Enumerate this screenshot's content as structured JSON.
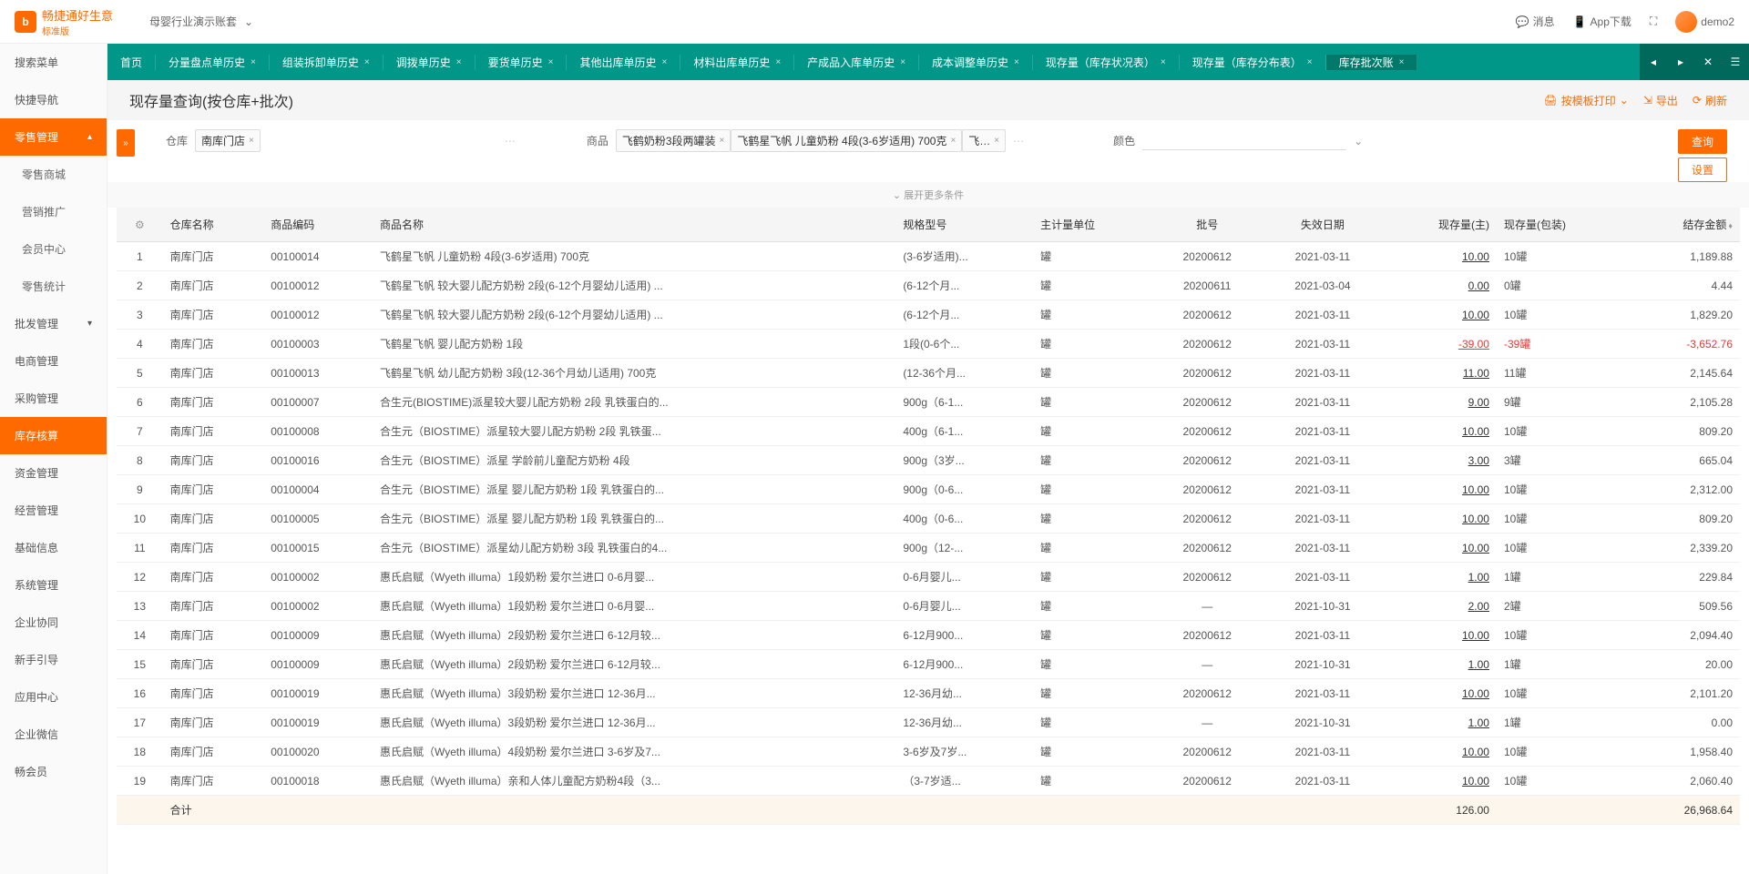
{
  "topbar": {
    "brand_main": "畅捷通好生意",
    "brand_sub": "标准版",
    "account": "母婴行业演示账套",
    "msg": "消息",
    "app": "App下载",
    "user": "demo2"
  },
  "sidebar": {
    "items": [
      {
        "label": "搜索菜单",
        "type": "item"
      },
      {
        "label": "快捷导航",
        "type": "item"
      },
      {
        "label": "零售管理",
        "type": "item",
        "active": true,
        "arrow": "▴"
      },
      {
        "label": "零售商城",
        "type": "sub"
      },
      {
        "label": "营销推广",
        "type": "sub"
      },
      {
        "label": "会员中心",
        "type": "sub"
      },
      {
        "label": "零售统计",
        "type": "sub"
      },
      {
        "label": "批发管理",
        "type": "item",
        "arrow": "▾"
      },
      {
        "label": "电商管理",
        "type": "item"
      },
      {
        "label": "采购管理",
        "type": "item"
      },
      {
        "label": "库存核算",
        "type": "item",
        "highlight": true
      },
      {
        "label": "资金管理",
        "type": "item"
      },
      {
        "label": "经营管理",
        "type": "item"
      },
      {
        "label": "基础信息",
        "type": "item"
      },
      {
        "label": "系统管理",
        "type": "item"
      },
      {
        "label": "企业协同",
        "type": "item"
      },
      {
        "label": "新手引导",
        "type": "item"
      },
      {
        "label": "应用中心",
        "type": "item"
      },
      {
        "label": "企业微信",
        "type": "item"
      },
      {
        "label": "畅会员",
        "type": "item"
      }
    ]
  },
  "tabs": [
    {
      "label": "首页",
      "closable": false
    },
    {
      "label": "分量盘点单历史",
      "closable": true
    },
    {
      "label": "组装拆卸单历史",
      "closable": true
    },
    {
      "label": "调拨单历史",
      "closable": true
    },
    {
      "label": "要货单历史",
      "closable": true
    },
    {
      "label": "其他出库单历史",
      "closable": true
    },
    {
      "label": "材料出库单历史",
      "closable": true
    },
    {
      "label": "产成品入库单历史",
      "closable": true
    },
    {
      "label": "成本调整单历史",
      "closable": true
    },
    {
      "label": "现存量（库存状况表）",
      "closable": true
    },
    {
      "label": "现存量（库存分布表）",
      "closable": true
    },
    {
      "label": "库存批次账",
      "closable": true,
      "active": true
    }
  ],
  "page": {
    "title": "现存量查询(按仓库+批次)",
    "actions": {
      "print": "按模板打印",
      "export": "导出",
      "refresh": "刷新"
    }
  },
  "filters": {
    "warehouse_label": "仓库",
    "warehouse_chip": "南库门店",
    "product_label": "商品",
    "product_chips": [
      "飞鹤奶粉3段两罐装",
      "飞鹤星飞帆 儿童奶粉 4段(3-6岁适用) 700克",
      "飞…"
    ],
    "color_label": "颜色",
    "query_btn": "查询",
    "settings_btn": "设置",
    "expand_more": "展开更多条件"
  },
  "table": {
    "columns": [
      "",
      "仓库名称",
      "商品编码",
      "商品名称",
      "规格型号",
      "主计量单位",
      "批号",
      "失效日期",
      "现存量(主)",
      "现存量(包装)",
      "结存金额"
    ],
    "rows": [
      [
        "1",
        "南库门店",
        "00100014",
        "飞鹤星飞帆 儿童奶粉 4段(3-6岁适用) 700克",
        "(3-6岁适用)...",
        "罐",
        "20200612",
        "2021-03-11",
        "10.00",
        "10罐",
        "1,189.88"
      ],
      [
        "2",
        "南库门店",
        "00100012",
        "飞鹤星飞帆 较大婴儿配方奶粉 2段(6-12个月婴幼儿适用) ...",
        "(6-12个月...",
        "罐",
        "20200611",
        "2021-03-04",
        "0.00",
        "0罐",
        "4.44"
      ],
      [
        "3",
        "南库门店",
        "00100012",
        "飞鹤星飞帆 较大婴儿配方奶粉 2段(6-12个月婴幼儿适用) ...",
        "(6-12个月...",
        "罐",
        "20200612",
        "2021-03-11",
        "10.00",
        "10罐",
        "1,829.20"
      ],
      [
        "4",
        "南库门店",
        "00100003",
        "飞鹤星飞帆 婴儿配方奶粉 1段",
        "1段(0-6个...",
        "罐",
        "20200612",
        "2021-03-11",
        "-39.00",
        "-39罐",
        "-3,652.76"
      ],
      [
        "5",
        "南库门店",
        "00100013",
        "飞鹤星飞帆 幼儿配方奶粉 3段(12-36个月幼儿适用) 700克",
        "(12-36个月...",
        "罐",
        "20200612",
        "2021-03-11",
        "11.00",
        "11罐",
        "2,145.64"
      ],
      [
        "6",
        "南库门店",
        "00100007",
        "合生元(BIOSTIME)派星较大婴儿配方奶粉 2段 乳铁蛋白的...",
        "900g（6-1...",
        "罐",
        "20200612",
        "2021-03-11",
        "9.00",
        "9罐",
        "2,105.28"
      ],
      [
        "7",
        "南库门店",
        "00100008",
        "合生元（BIOSTIME）派星较大婴儿配方奶粉 2段 乳铁蛋...",
        "400g（6-1...",
        "罐",
        "20200612",
        "2021-03-11",
        "10.00",
        "10罐",
        "809.20"
      ],
      [
        "8",
        "南库门店",
        "00100016",
        "合生元（BIOSTIME）派星 学龄前儿童配方奶粉 4段",
        "900g（3岁...",
        "罐",
        "20200612",
        "2021-03-11",
        "3.00",
        "3罐",
        "665.04"
      ],
      [
        "9",
        "南库门店",
        "00100004",
        "合生元（BIOSTIME）派星 婴儿配方奶粉 1段 乳铁蛋白的...",
        "900g（0-6...",
        "罐",
        "20200612",
        "2021-03-11",
        "10.00",
        "10罐",
        "2,312.00"
      ],
      [
        "10",
        "南库门店",
        "00100005",
        "合生元（BIOSTIME）派星 婴儿配方奶粉 1段 乳铁蛋白的...",
        "400g（0-6...",
        "罐",
        "20200612",
        "2021-03-11",
        "10.00",
        "10罐",
        "809.20"
      ],
      [
        "11",
        "南库门店",
        "00100015",
        "合生元（BIOSTIME）派星幼儿配方奶粉 3段 乳铁蛋白的4...",
        "900g（12-...",
        "罐",
        "20200612",
        "2021-03-11",
        "10.00",
        "10罐",
        "2,339.20"
      ],
      [
        "12",
        "南库门店",
        "00100002",
        "惠氏启赋（Wyeth illuma）1段奶粉 爱尔兰进口 0-6月婴...",
        "0-6月婴儿...",
        "罐",
        "20200612",
        "2021-03-11",
        "1.00",
        "1罐",
        "229.84"
      ],
      [
        "13",
        "南库门店",
        "00100002",
        "惠氏启赋（Wyeth illuma）1段奶粉 爱尔兰进口 0-6月婴...",
        "0-6月婴儿...",
        "罐",
        "—",
        "2021-10-31",
        "2.00",
        "2罐",
        "509.56"
      ],
      [
        "14",
        "南库门店",
        "00100009",
        "惠氏启赋（Wyeth illuma）2段奶粉 爱尔兰进口 6-12月较...",
        "6-12月900...",
        "罐",
        "20200612",
        "2021-03-11",
        "10.00",
        "10罐",
        "2,094.40"
      ],
      [
        "15",
        "南库门店",
        "00100009",
        "惠氏启赋（Wyeth illuma）2段奶粉 爱尔兰进口 6-12月较...",
        "6-12月900...",
        "罐",
        "—",
        "2021-10-31",
        "1.00",
        "1罐",
        "20.00"
      ],
      [
        "16",
        "南库门店",
        "00100019",
        "惠氏启赋（Wyeth illuma）3段奶粉 爱尔兰进口 12-36月...",
        "12-36月幼...",
        "罐",
        "20200612",
        "2021-03-11",
        "10.00",
        "10罐",
        "2,101.20"
      ],
      [
        "17",
        "南库门店",
        "00100019",
        "惠氏启赋（Wyeth illuma）3段奶粉 爱尔兰进口 12-36月...",
        "12-36月幼...",
        "罐",
        "—",
        "2021-10-31",
        "1.00",
        "1罐",
        "0.00"
      ],
      [
        "18",
        "南库门店",
        "00100020",
        "惠氏启赋（Wyeth illuma）4段奶粉 爱尔兰进口 3-6岁及7...",
        "3-6岁及7岁...",
        "罐",
        "20200612",
        "2021-03-11",
        "10.00",
        "10罐",
        "1,958.40"
      ],
      [
        "19",
        "南库门店",
        "00100018",
        "惠氏启赋（Wyeth illuma）亲和人体儿童配方奶粉4段（3...",
        "（3-7岁适...",
        "罐",
        "20200612",
        "2021-03-11",
        "10.00",
        "10罐",
        "2,060.40"
      ]
    ],
    "total_label": "合计",
    "total_qty": "126.00",
    "total_amount": "26,968.64"
  }
}
